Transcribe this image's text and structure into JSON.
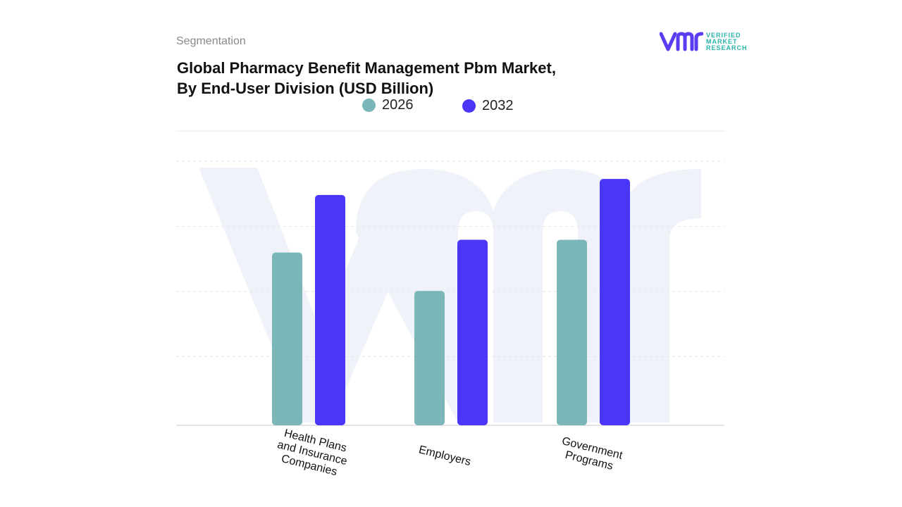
{
  "header": {
    "segment_label": "Segmentation",
    "title_line1": "Global Pharmacy Benefit Management Pbm Market,",
    "title_line2": "By End-User Division (USD Billion)"
  },
  "logo": {
    "mark_icon": "vmr-logo-icon",
    "line1": "VERIFIED",
    "line2": "MARKET",
    "line3": "RESEARCH",
    "brand_color": "#5b3cf0",
    "accent_color": "#29b3a8"
  },
  "colors": {
    "series_2026": "#7bb6b9",
    "series_2032": "#4b35f7",
    "grid": "#e3e3e3",
    "watermark": "#f0f2fa"
  },
  "chart_data": {
    "type": "bar",
    "title": "Global Pharmacy Benefit Management Pbm Market, By End-User Division (USD Billion)",
    "categories": [
      "Health Plans and Insurance Companies",
      "Employers",
      "Government Programs"
    ],
    "category_lines": [
      [
        "Health Plans",
        "and Insurance",
        "Companies"
      ],
      [
        "Employers"
      ],
      [
        "Government",
        "Programs"
      ]
    ],
    "series": [
      {
        "name": "2026",
        "values": [
          27,
          21,
          29
        ]
      },
      {
        "name": "2032",
        "values": [
          36,
          29,
          38.5
        ]
      }
    ],
    "ylim": [
      0,
      46
    ],
    "grid": true,
    "legend_position": "top-center",
    "y_axis_labels_visible": false
  }
}
